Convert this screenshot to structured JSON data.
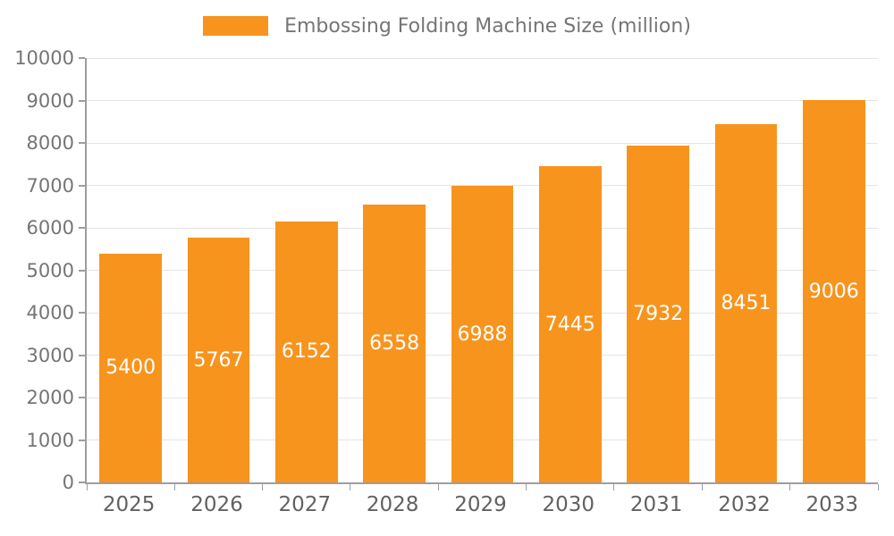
{
  "chart_data": {
    "type": "bar",
    "title": "Embossing Folding Machine Size (million)",
    "categories": [
      "2025",
      "2026",
      "2027",
      "2028",
      "2029",
      "2030",
      "2031",
      "2032",
      "2033"
    ],
    "values": [
      5400,
      5767,
      6152,
      6558,
      6988,
      7445,
      7932,
      8451,
      9006
    ],
    "ylim": [
      0,
      10000
    ],
    "ytick_interval": 1000,
    "yticks": [
      0,
      1000,
      2000,
      3000,
      4000,
      5000,
      6000,
      7000,
      8000,
      9000,
      10000
    ],
    "bar_color": "#F7941E",
    "value_label_color": "#FFFFFF",
    "axis_color": "#9E9E9E",
    "grid": true,
    "legend_position": "top",
    "xlabel": "",
    "ylabel": ""
  }
}
